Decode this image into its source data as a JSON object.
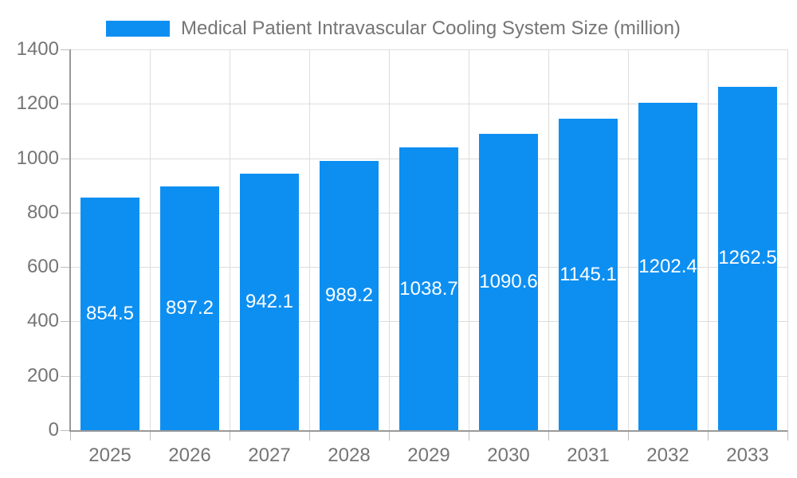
{
  "legend": {
    "label": "Medical Patient Intravascular Cooling System Size (million)"
  },
  "chart_data": {
    "type": "bar",
    "title": "",
    "xlabel": "",
    "ylabel": "",
    "series_name": "Medical Patient Intravascular Cooling System Size (million)",
    "categories": [
      "2025",
      "2026",
      "2027",
      "2028",
      "2029",
      "2030",
      "2031",
      "2032",
      "2033"
    ],
    "values": [
      854.5,
      897.2,
      942.1,
      989.2,
      1038.7,
      1090.6,
      1145.1,
      1202.4,
      1262.5
    ],
    "yticks": [
      0,
      200,
      400,
      600,
      800,
      1000,
      1200,
      1400
    ],
    "ylim": [
      0,
      1400
    ],
    "grid": true,
    "legend_position": "top",
    "value_labels": "inside-center-white",
    "colors": {
      "bar": "#0D8FF2",
      "value_label": "#FFFFFF",
      "axis_text": "#757575",
      "gridline": "#DDDDDD",
      "axis_line": "#999999",
      "tick": "#BDBDBD",
      "background": "#FFFFFF"
    }
  }
}
